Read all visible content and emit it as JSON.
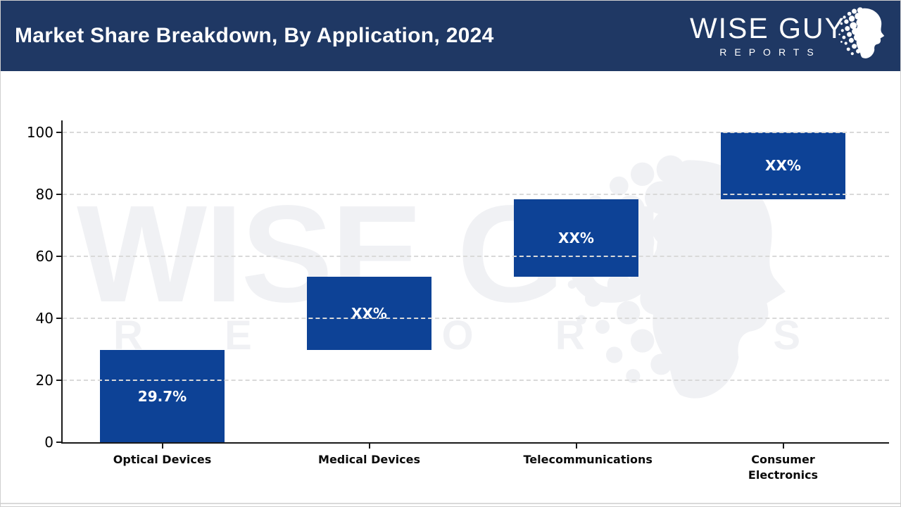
{
  "header": {
    "title": "Market Share Breakdown, By Application, 2024",
    "logo": {
      "brand": "WISE GUY",
      "sub": "REPORTS",
      "face_icon": "dotted-head-profile"
    }
  },
  "watermark": {
    "brand": "WISE GUY",
    "sub": "R E P O R T S",
    "face_icon": "dotted-head-profile"
  },
  "chart_data": {
    "type": "bar",
    "subtype": "waterfall",
    "title": "Market Share Breakdown, By Application, 2024",
    "categories": [
      "Optical Devices",
      "Medical Devices",
      "Telecommunications",
      "Consumer Electronics"
    ],
    "series": [
      {
        "name": "Market Share (%)",
        "segments": [
          {
            "category": "Optical Devices",
            "start": 0,
            "end": 29.7,
            "label": "29.7%"
          },
          {
            "category": "Medical Devices",
            "start": 29.7,
            "end": 53.5,
            "label": "XX%"
          },
          {
            "category": "Telecommunications",
            "start": 53.5,
            "end": 78.5,
            "label": "XX%"
          },
          {
            "category": "Consumer Electronics",
            "start": 78.5,
            "end": 100,
            "label": "XX%"
          }
        ]
      }
    ],
    "xlabel": "",
    "ylabel": "",
    "ylim": [
      0,
      100
    ],
    "yticks": [
      0,
      20,
      40,
      60,
      80,
      100
    ],
    "grid": "dashed-horizontal-on-top",
    "legend": "none",
    "bar_color": "#0d4296",
    "label_color": "#ffffff"
  },
  "colors": {
    "header_bg": "#1f3864",
    "bar": "#0d4296",
    "grid": "#d9d9d9",
    "axis": "#1a1a1a",
    "watermark": "#f0f1f4"
  }
}
